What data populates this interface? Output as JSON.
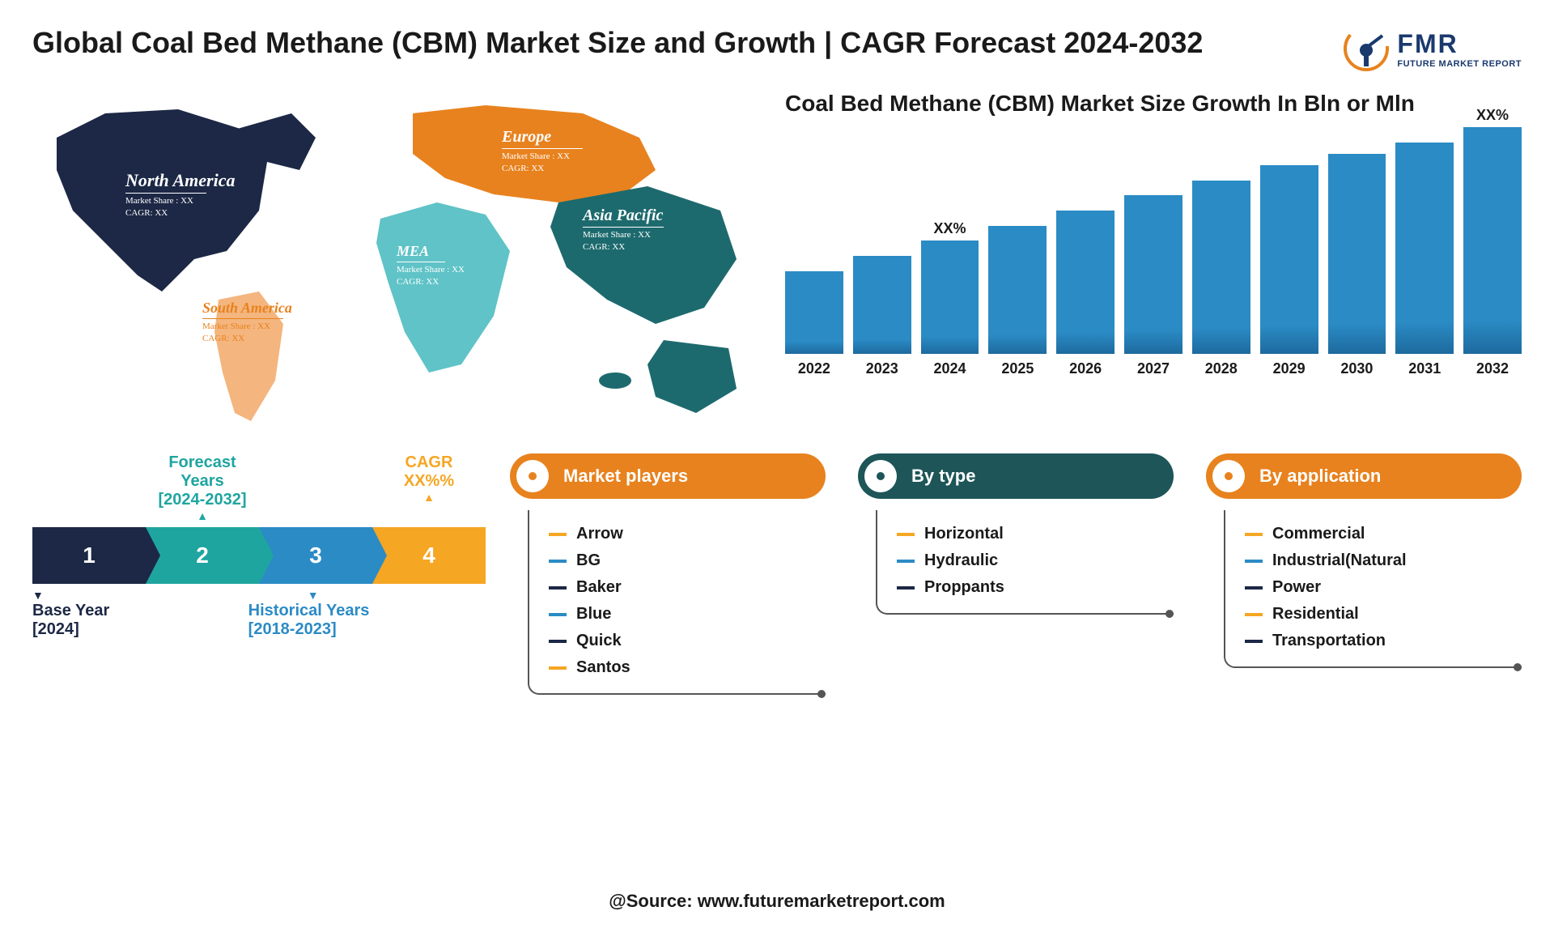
{
  "title": "Global Coal Bed Methane (CBM) Market Size and Growth | CAGR Forecast 2024-2032",
  "logo": {
    "main": "FMR",
    "sub": "FUTURE MARKET REPORT",
    "orange": "#e8821e",
    "blue": "#1a3a6e"
  },
  "map": {
    "regions": [
      {
        "key": "na",
        "name": "North America",
        "share": "Market Share : XX",
        "cagr": "CAGR: XX",
        "color": "#1c2845"
      },
      {
        "key": "sa",
        "name": "South America",
        "share": "Market Share : XX",
        "cagr": "CAGR: XX",
        "color": "#f4b57e"
      },
      {
        "key": "eu",
        "name": "Europe",
        "share": "Market Share : XX",
        "cagr": "CAGR: XX",
        "color": "#e8821e"
      },
      {
        "key": "mea",
        "name": "MEA",
        "share": "Market Share : XX",
        "cagr": "CAGR: XX",
        "color": "#5fc3c7"
      },
      {
        "key": "ap",
        "name": "Asia Pacific",
        "share": "Market Share : XX",
        "cagr": "CAGR: XX",
        "color": "#1d6a6e"
      }
    ]
  },
  "chart": {
    "title": "Coal Bed Methane (CBM) Market Size Growth In Bln or Mln",
    "type": "bar",
    "categories": [
      "2022",
      "2023",
      "2024",
      "2025",
      "2026",
      "2027",
      "2028",
      "2029",
      "2030",
      "2031",
      "2032"
    ],
    "values": [
      110,
      130,
      150,
      170,
      190,
      210,
      230,
      250,
      265,
      280,
      300
    ],
    "max": 300,
    "labels_top": {
      "2": "XX%",
      "10": "XX%"
    },
    "bar_color": "#2b8bc5",
    "bar_color_dark": "#1d6a9e",
    "label_fontsize": 18,
    "title_fontsize": 28
  },
  "timeline": {
    "segments": [
      {
        "num": "1",
        "color": "#1c2845"
      },
      {
        "num": "2",
        "color": "#1fa5a0"
      },
      {
        "num": "3",
        "color": "#2b8bc5"
      },
      {
        "num": "4",
        "color": "#f5a623"
      }
    ],
    "forecast": {
      "title": "Forecast Years",
      "range": "[2024-2032]",
      "color": "#1fa5a0"
    },
    "cagr": {
      "title": "CAGR",
      "value": "XX%%",
      "color": "#f5a623"
    },
    "base": {
      "title": "Base Year",
      "range": "[2024]",
      "color": "#1c2845"
    },
    "historical": {
      "title": "Historical Years",
      "range": "[2018-2023]",
      "color": "#2b8bc5"
    }
  },
  "pills": [
    {
      "title": "Market players",
      "header_color": "#e8821e",
      "items": [
        "Arrow",
        "BG",
        "Baker",
        "Blue",
        "Quick",
        "Santos"
      ],
      "tick_colors": [
        "#f5a623",
        "#2b8bc5",
        "#1c2845",
        "#2b8bc5",
        "#1c2845",
        "#f5a623"
      ]
    },
    {
      "title": "By type",
      "header_color": "#1d5558",
      "items": [
        "Horizontal",
        "Hydraulic",
        "Proppants"
      ],
      "tick_colors": [
        "#f5a623",
        "#2b8bc5",
        "#1c2845"
      ]
    },
    {
      "title": "By application",
      "header_color": "#e8821e",
      "items": [
        "Commercial",
        "Industrial(Natural",
        "Power",
        "Residential",
        "Transportation"
      ],
      "tick_colors": [
        "#f5a623",
        "#2b8bc5",
        "#1c2845",
        "#f5a623",
        "#1c2845"
      ]
    }
  ],
  "source": "@Source: www.futuremarketreport.com"
}
